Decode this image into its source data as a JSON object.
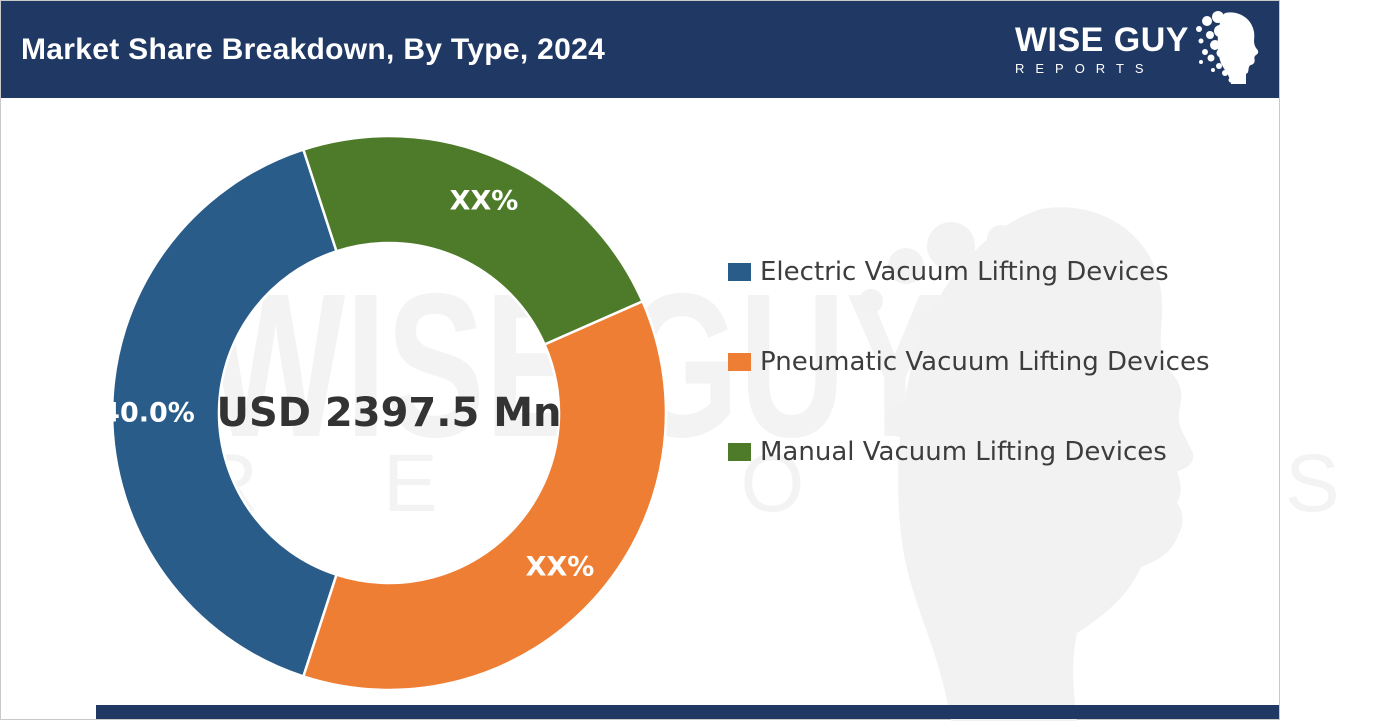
{
  "header": {
    "logo": {
      "line1": "WISE GUY",
      "line2": "REPORTS"
    }
  },
  "watermark": {
    "line1": "WISE GUY",
    "line2": "R E P O R T S"
  },
  "chart_data": {
    "type": "pie",
    "variant": "donut",
    "title": "Market Share Breakdown, By Type, 2024",
    "center_label": "USD 2397.5 Mn",
    "legend_position": "right",
    "start_angle_deg": 198,
    "draw_order": [
      0,
      2,
      1
    ],
    "slices": [
      {
        "name": "Electric Vacuum Lifting Devices",
        "value": 40.0,
        "display_label": "40.0%",
        "color": "#2a5c8a",
        "label_radius": 0.87
      },
      {
        "name": "Pneumatic Vacuum Lifting Devices",
        "value": 36.6,
        "display_label": "XX%",
        "color": "#ee7e33",
        "label_radius": 0.83
      },
      {
        "name": "Manual Vacuum Lifting Devices",
        "value": 23.4,
        "display_label": "XX%",
        "color": "#4e7b2a",
        "label_radius": 0.84
      }
    ],
    "colors": {
      "header_bar": "#1f3864",
      "footer_bar": "#1f3864",
      "center_text": "#333333",
      "legend_text": "#3d3d3d",
      "slice_label_text": "#ffffff",
      "watermark": "#f3f3f3"
    }
  }
}
